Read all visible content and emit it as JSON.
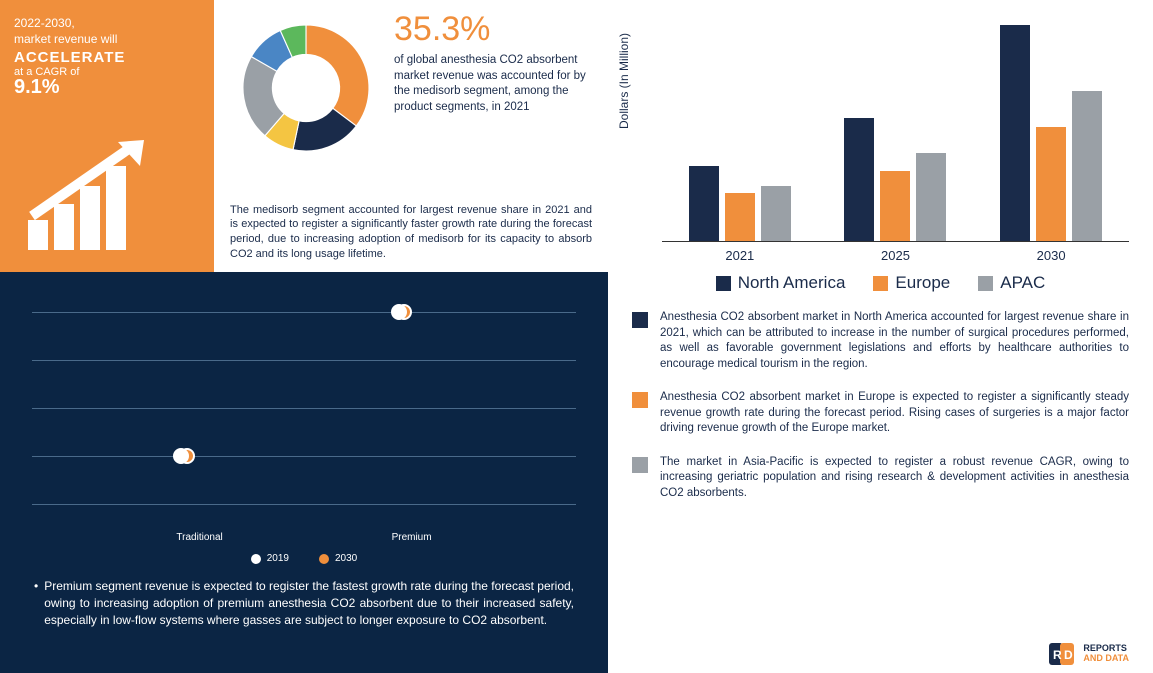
{
  "orange_box": {
    "line1": "2022-2030,",
    "line2": "market revenue will",
    "accelerate": "ACCELERATE",
    "cagr_label": "at a CAGR of",
    "cagr_value": "9.1%"
  },
  "donut": {
    "big_pct": "35.3%",
    "desc": "of global anesthesia CO2 absorbent market revenue was accounted for by the medisorb segment, among the product segments, in 2021",
    "slices": [
      {
        "color": "#f08f3c",
        "pct": 35.3
      },
      {
        "color": "#1a2b4a",
        "pct": 18
      },
      {
        "color": "#f4c542",
        "pct": 8
      },
      {
        "color": "#9aa0a6",
        "pct": 22
      },
      {
        "color": "#4a86c5",
        "pct": 10
      },
      {
        "color": "#5cb85c",
        "pct": 6.7
      }
    ],
    "below_text": "The medisorb segment accounted for largest revenue share in 2021 and is expected to register a significantly faster growth rate during the forecast period, due to increasing adoption of medisorb for its capacity to absorb CO2 and its long usage lifetime."
  },
  "dark_chart": {
    "categories": [
      "Traditional",
      "Premium"
    ],
    "series": [
      {
        "label": "2019",
        "color": "#ffffff"
      },
      {
        "label": "2030",
        "color": "#f08f3c"
      }
    ],
    "points": {
      "2019": {
        "Traditional": 26,
        "Premium": 66
      },
      "2030": {
        "Traditional": 27,
        "Premium": 67
      }
    },
    "desc": "Premium segment revenue is expected to register the fastest growth rate during the forecast period, owing to increasing adoption of premium anesthesia CO2 absorbent due to their increased safety, especially in low-flow systems where gasses are subject to longer exposure to CO2 absorbent."
  },
  "bar_chart": {
    "ylabel": "Dollars (In Million)",
    "ylim": [
      0,
      250
    ],
    "categories": [
      "2021",
      "2025",
      "2030"
    ],
    "series": [
      {
        "name": "North America",
        "color": "#1a2b4a",
        "values": [
          85,
          140,
          245
        ]
      },
      {
        "name": "Europe",
        "color": "#f08f3c",
        "values": [
          55,
          80,
          130
        ]
      },
      {
        "name": "APAC",
        "color": "#9aa0a6",
        "values": [
          62,
          100,
          170
        ]
      }
    ]
  },
  "regions": [
    {
      "color": "#1a2b4a",
      "text": "Anesthesia CO2 absorbent market in North America accounted for largest revenue share in 2021, which can be attributed to increase in the number of surgical procedures performed, as well as favorable government legislations and efforts by healthcare authorities to encourage medical tourism in the region."
    },
    {
      "color": "#f08f3c",
      "text": "Anesthesia CO2 absorbent market in Europe is expected to register a significantly steady revenue growth rate during the forecast period. Rising cases of surgeries is a major factor driving revenue growth of the Europe market."
    },
    {
      "color": "#9aa0a6",
      "text": "The market in Asia-Pacific is expected to register a robust revenue CAGR, owing to increasing geriatric population and rising research & development activities in anesthesia CO2 absorbents."
    }
  ],
  "logo": {
    "line1": "REPORTS",
    "line2": "AND DATA"
  }
}
